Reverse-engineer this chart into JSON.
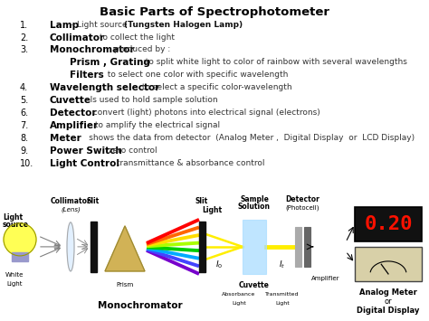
{
  "title": "Basic Parts of Spectrophotometer",
  "text_items": [
    {
      "num": "1.",
      "bold": "Lamp",
      "normal": " - Light source ",
      "small_bold": "(Tungsten Halogen Lamp)",
      "indent": 0
    },
    {
      "num": "2.",
      "bold": "Collimator",
      "normal": " to collect the light",
      "small_bold": "",
      "indent": 0
    },
    {
      "num": "3.",
      "bold": "Monochromator",
      "normal": " produced by :",
      "small_bold": "",
      "indent": 0
    },
    {
      "num": "",
      "bold": "Prism , Grating",
      "normal": " :to split white light to color of rainbow with several wavelengths",
      "small_bold": "",
      "indent": 1
    },
    {
      "num": "",
      "bold": "Filters",
      "normal": "  to select one color with specific wavelength",
      "small_bold": "",
      "indent": 1
    },
    {
      "num": "4.",
      "bold": "Wavelength selector",
      "normal": " to select a specific color-wavelength",
      "small_bold": "",
      "indent": 0
    },
    {
      "num": "5.",
      "bold": "Cuvette",
      "normal": "   Is used to hold sample solution",
      "small_bold": "",
      "indent": 0
    },
    {
      "num": "6.",
      "bold": "Detector",
      "normal": "  convert (light) photons into electrical signal (electrons)",
      "small_bold": "",
      "indent": 0
    },
    {
      "num": "7.",
      "bold": "Amplifier",
      "normal": " to amplify the electrical signal",
      "small_bold": "",
      "indent": 0
    },
    {
      "num": "8.",
      "bold": "Meter",
      "normal": "      shows the data from detector  (Analog Meter ,  Digital Display  or  LCD Display)",
      "small_bold": "",
      "indent": 0
    },
    {
      "num": "9.",
      "bold": "Power Switch",
      "normal": " zero control",
      "small_bold": "",
      "indent": 0
    },
    {
      "num": "10.",
      "bold": "Light Control",
      "normal": "  transmittance & absorbance control",
      "small_bold": "",
      "indent": 0
    }
  ],
  "diagram": {
    "lamp_color": "#ffff55",
    "lamp_base_color": "#9999cc",
    "prism_color": "#ccaa44",
    "slit_color": "#111111",
    "cuvette_color": "#aaddff",
    "digital_bg": "#111111",
    "digital_text": "#ff1100",
    "digital_value": "0.20",
    "spectrum_colors": [
      "#7700cc",
      "#4444ff",
      "#00aaff",
      "#00cc00",
      "#aaff00",
      "#ffdd00",
      "#ff6600",
      "#ff0000"
    ]
  }
}
